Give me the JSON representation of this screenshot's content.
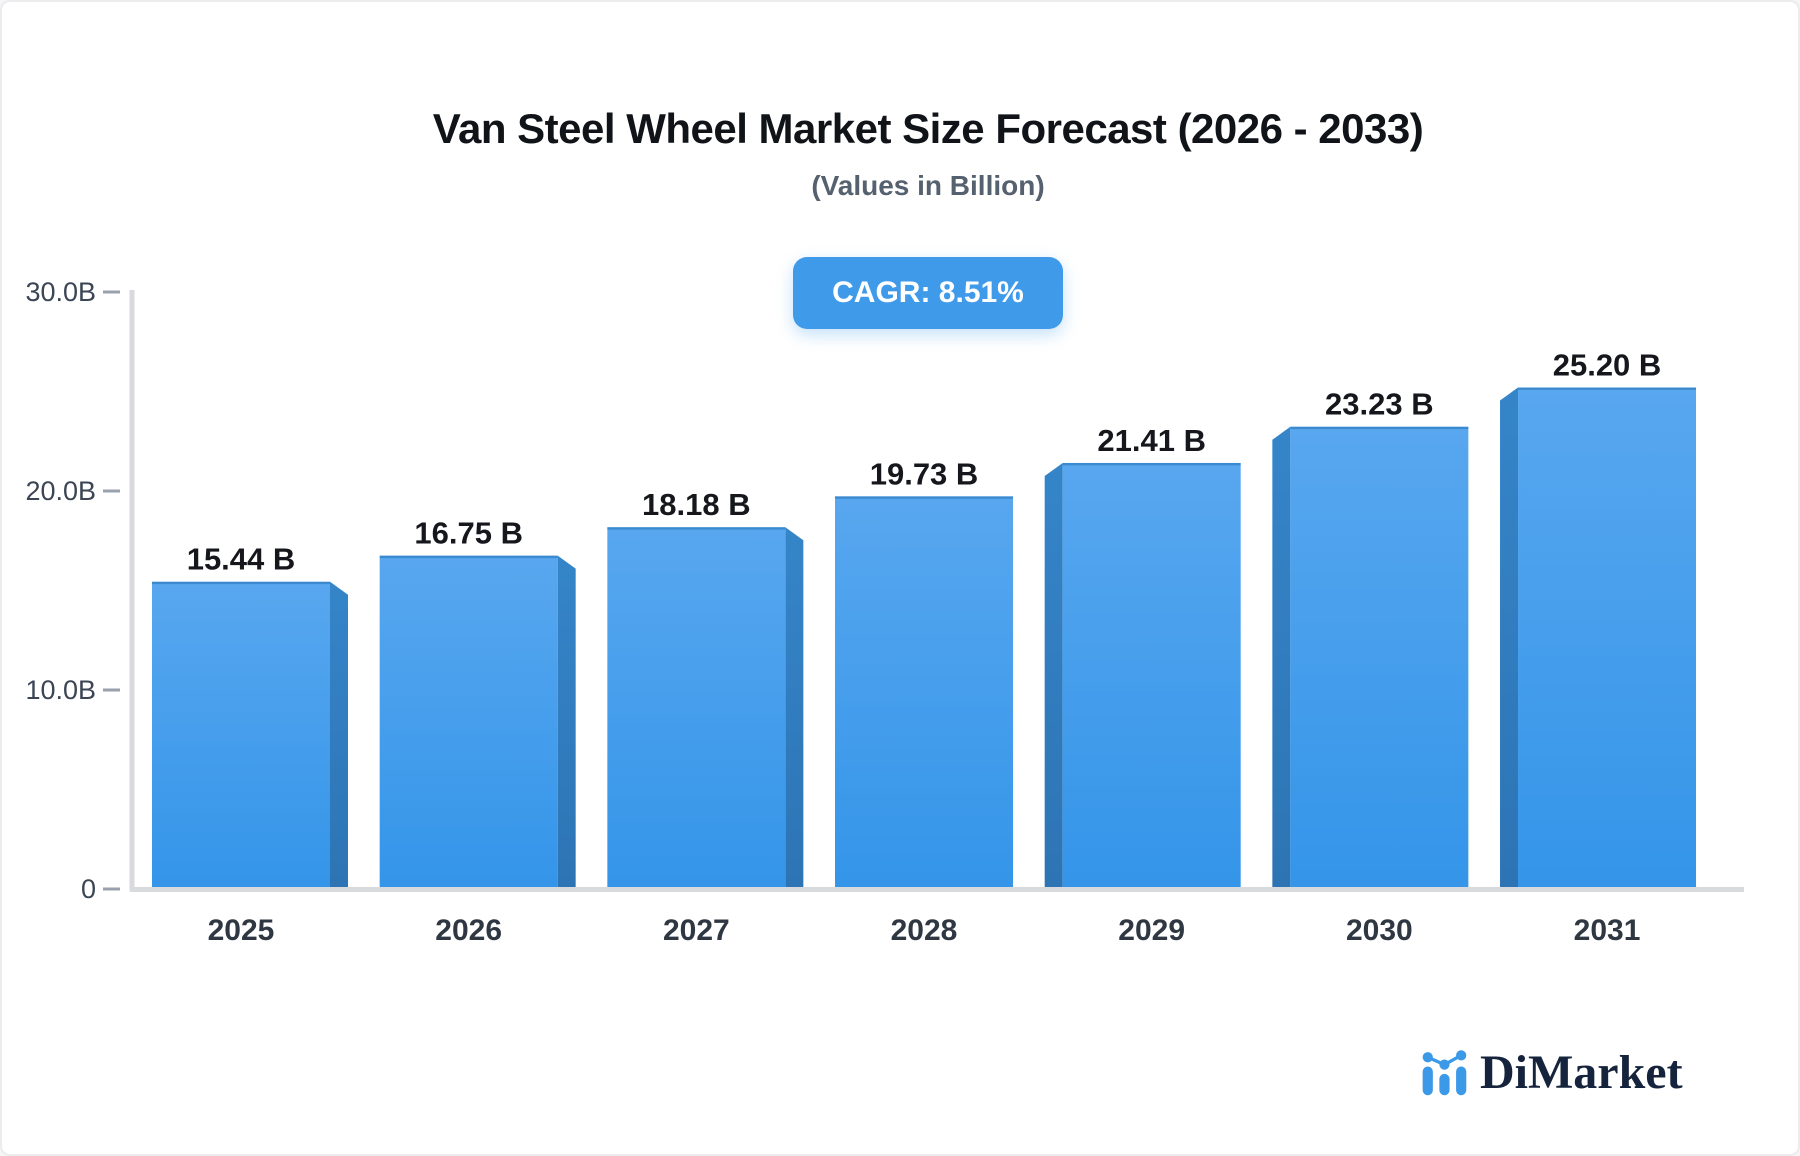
{
  "header": {
    "title": "Van Steel Wheel Market Size Forecast (2026 - 2033)",
    "subtitle": "(Values in Billion)",
    "cagr_label": "CAGR: 8.51%"
  },
  "chart_data": {
    "type": "bar",
    "title": "Van Steel Wheel Market Size Forecast (2026 - 2033)",
    "subtitle": "(Values in Billion)",
    "unit": "Billion",
    "cagr_percent": 8.51,
    "categories": [
      "2025",
      "2026",
      "2027",
      "2028",
      "2029",
      "2030",
      "2031"
    ],
    "values": [
      15.44,
      16.75,
      18.18,
      19.73,
      21.41,
      23.23,
      25.2
    ],
    "value_labels": [
      "15.44 B",
      "16.75 B",
      "18.18 B",
      "19.73 B",
      "21.41 B",
      "23.23 B",
      "25.20 B"
    ],
    "y_ticks": [
      {
        "label": "30.0B",
        "value": 30
      },
      {
        "label": "20.0B",
        "value": 20
      },
      {
        "label": "10.0B",
        "value": 10
      },
      {
        "label": "0",
        "value": 0
      }
    ],
    "ylim": [
      0,
      30
    ],
    "grid": false,
    "legend": "none",
    "bar_style": "3d-extruded"
  },
  "branding": {
    "logo_text": "DiMarket",
    "logo_icon": "bar-line-chart-icon"
  },
  "colors": {
    "accent_blue": "#3f9bea",
    "bar_face_top": "#58a7ef",
    "bar_face_bottom": "#3495e9",
    "bar_side_top": "#3585c9",
    "bar_side_bottom": "#2d74b4",
    "bar_top_edge": "#2573b8",
    "axis_line": "#d8dade",
    "tick_dash": "#99a1ac",
    "tick_label": "#3b4554",
    "category_label": "#2f3842",
    "value_label": "#15171c",
    "title_text": "#101318",
    "subtitle_text": "#56616f",
    "logo_text_color": "#15233c",
    "logo_icon_color": "#3b99e8"
  }
}
